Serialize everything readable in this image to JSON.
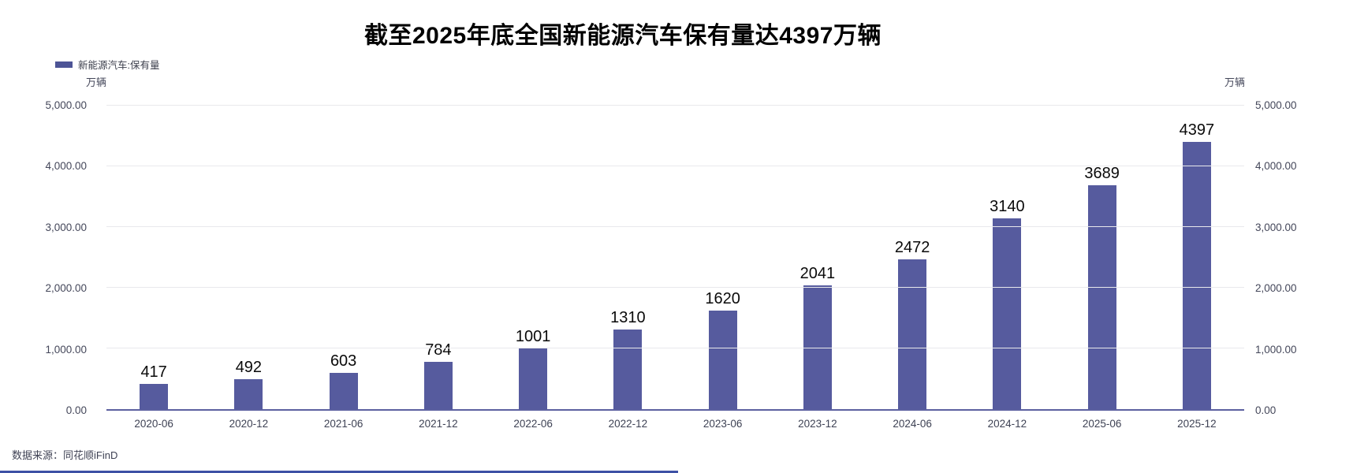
{
  "title": "截至2025年底全国新能源汽车保有量达4397万辆",
  "legend": {
    "label": "新能源汽车:保有量"
  },
  "units": {
    "left": "万辆",
    "right": "万辆"
  },
  "source": "数据来源：同花顺iFinD",
  "colors": {
    "bar": "#565b9e",
    "legend_swatch": "#4d5496",
    "axis_line": "#5c60a0",
    "gridline": "#e9e9ec",
    "bottom_strip": "#3d51a5"
  },
  "chart_data": {
    "type": "bar",
    "title": "截至2025年底全国新能源汽车保有量达4397万辆",
    "categories": [
      "2020-06",
      "2020-12",
      "2021-06",
      "2021-12",
      "2022-06",
      "2022-12",
      "2023-06",
      "2023-12",
      "2024-06",
      "2024-12",
      "2025-06",
      "2025-12"
    ],
    "series": [
      {
        "name": "新能源汽车:保有量",
        "values": [
          417,
          492,
          603,
          784,
          1001,
          1310,
          1620,
          2041,
          2472,
          3140,
          3689,
          4397
        ]
      }
    ],
    "data_labels": [
      417,
      492,
      603,
      784,
      1001,
      1310,
      1620,
      2041,
      2472,
      3140,
      3689,
      4397
    ],
    "ylabel": "万辆",
    "ylim": [
      0,
      5000
    ],
    "ytick_labels": [
      "0.00",
      "1,000.00",
      "2,000.00",
      "3,000.00",
      "4,000.00",
      "5,000.00"
    ],
    "grid": true,
    "legend_position": "top-left",
    "dual_y_axis": true
  }
}
